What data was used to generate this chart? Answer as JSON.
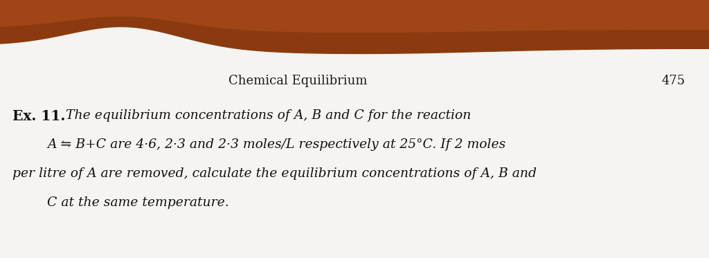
{
  "header_text": "Chemical Equilibrium",
  "page_number": "475",
  "bg_color_top": "#8B3A10",
  "bg_color_page": "#f0eeeb",
  "bg_color_white": "#f5f4f0",
  "header_fontsize": 13,
  "page_num_fontsize": 13,
  "body_fontsize": 13.5,
  "top_band_color": "#7a3010",
  "line1_bold": "Ex. 11.",
  "line1_italic": " The equilibrium concentrations of A, B and C for the reaction",
  "line2": "    A ⇌ B+C are 4·6, 2·3 and 2·3 moles/L respectively at 25°C. If 2 moles",
  "line3": "per litre of A are removed, calculate the equilibrium concentrations of A, B and",
  "line4": "C at the same temperature."
}
